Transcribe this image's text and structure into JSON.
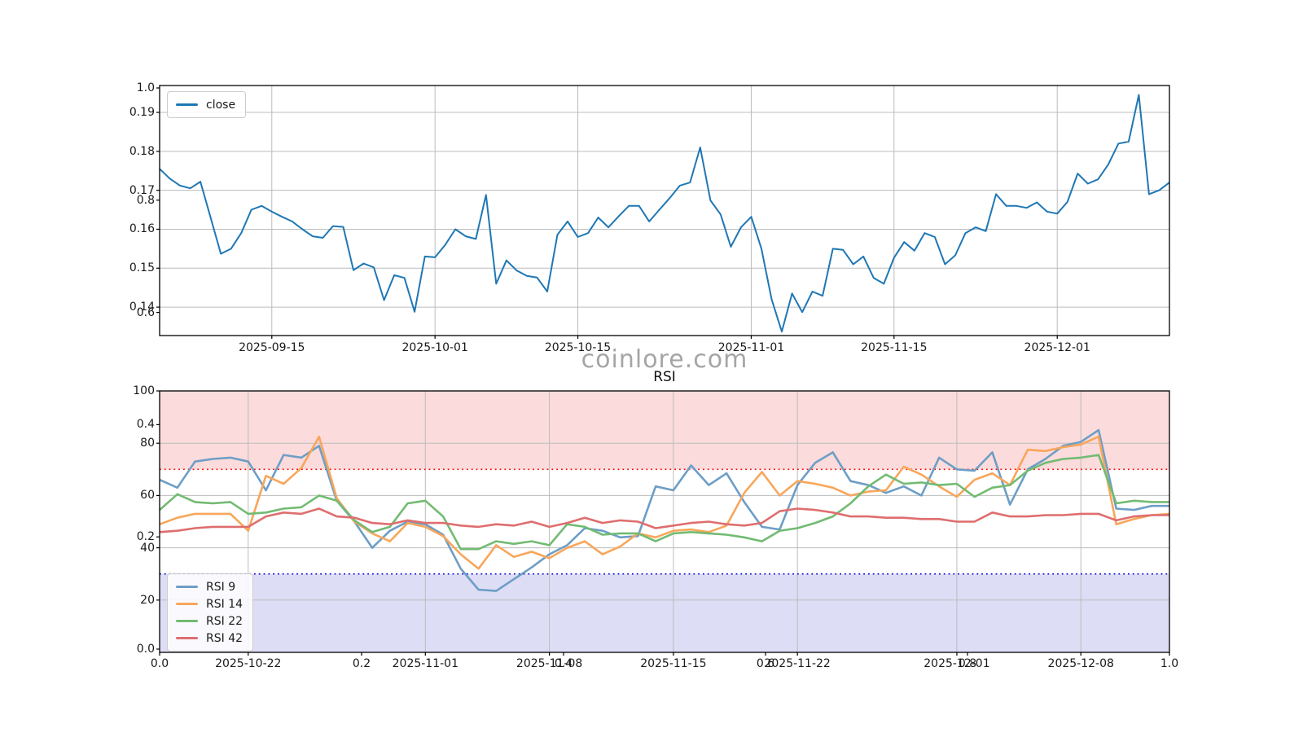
{
  "watermark": "coinlore.com",
  "phantom_axis": {
    "x_ticks": [
      "0.0",
      "0.2",
      "0.4",
      "0.6",
      "0.8",
      "1.0"
    ],
    "y_ticks": [
      "1.0",
      "0.8",
      "0.6",
      "0.4",
      "0.2",
      "0.0"
    ]
  },
  "colors": {
    "close_line": "#1F77B4",
    "rsi9_line": "#6D9EC6",
    "rsi14_line": "#F8A65B",
    "rsi22_line": "#72BB72",
    "rsi42_line": "#DF6E6E",
    "overbought_band": "#FBDBDB",
    "oversold_band": "#DDDDF6",
    "overbought_line": "#FF0000",
    "oversold_line": "#0000CC",
    "grid": "#BCBCBC",
    "spine": "#000000",
    "watermark_text": "#8F8F8F"
  },
  "chart_data": [
    {
      "type": "line",
      "title": "",
      "x_start": "2025-09-04",
      "x_end": "2025-12-12",
      "x_freq": "daily",
      "ylim": [
        0.1327,
        0.1969
      ],
      "yticks": [
        "0.19",
        "0.18",
        "0.17",
        "0.16",
        "0.15",
        "0.14"
      ],
      "xticks": [
        "2025-09-15",
        "2025-10-01",
        "2025-10-15",
        "2025-11-01",
        "2025-11-15",
        "2025-12-01"
      ],
      "grid": true,
      "legend_position": "upper left",
      "series": [
        {
          "name": "close",
          "color": "#1F77B4",
          "values": [
            0.1755,
            0.173,
            0.1712,
            0.1705,
            0.1722,
            0.163,
            0.1537,
            0.155,
            0.159,
            0.165,
            0.166,
            0.1645,
            0.1632,
            0.162,
            0.16,
            0.1582,
            0.1578,
            0.1608,
            0.1606,
            0.1495,
            0.1512,
            0.1502,
            0.1418,
            0.1482,
            0.1475,
            0.1388,
            0.153,
            0.1528,
            0.156,
            0.16,
            0.1582,
            0.1575,
            0.1688,
            0.146,
            0.152,
            0.1494,
            0.148,
            0.1476,
            0.144,
            0.1586,
            0.162,
            0.158,
            0.159,
            0.163,
            0.1605,
            0.1633,
            0.166,
            0.166,
            0.162,
            0.165,
            0.168,
            0.1712,
            0.172,
            0.181,
            0.1674,
            0.1638,
            0.1555,
            0.1605,
            0.1632,
            0.155,
            0.142,
            0.1337,
            0.1435,
            0.1387,
            0.144,
            0.1429,
            0.155,
            0.1547,
            0.151,
            0.153,
            0.1475,
            0.146,
            0.1527,
            0.1567,
            0.1545,
            0.159,
            0.158,
            0.151,
            0.1533,
            0.159,
            0.1605,
            0.1595,
            0.169,
            0.166,
            0.166,
            0.1655,
            0.1669,
            0.1645,
            0.164,
            0.167,
            0.1743,
            0.1717,
            0.1728,
            0.1766,
            0.182,
            0.1825,
            0.1945,
            0.169,
            0.17,
            0.172
          ]
        }
      ]
    },
    {
      "type": "line",
      "title": "RSI",
      "x_start": "2025-10-17",
      "x_end": "2025-12-13",
      "x_freq": "daily",
      "ylim": [
        0,
        100
      ],
      "yticks": [
        "100",
        "80",
        "60",
        "40",
        "20"
      ],
      "xticks": [
        "2025-10-22",
        "2025-11-01",
        "2025-11-08",
        "2025-11-15",
        "2025-11-22",
        "2025-12-01",
        "2025-12-08"
      ],
      "grid": true,
      "legend_position": "lower left",
      "overbought": {
        "level": 70,
        "band": [
          70,
          100
        ],
        "band_color": "#FBDBDB",
        "line_color": "#FF0000"
      },
      "oversold": {
        "level": 30,
        "band": [
          0,
          30
        ],
        "band_color": "#DDDDF6",
        "line_color": "#0000CC"
      },
      "series": [
        {
          "name": "RSI 9",
          "color": "#6D9EC6",
          "values": [
            66,
            63,
            73,
            74,
            74.5,
            73,
            62,
            75.5,
            74.5,
            79,
            58,
            50,
            40,
            46.5,
            50,
            49,
            45,
            32,
            24,
            23.5,
            28,
            32.5,
            37.5,
            41,
            47.5,
            46.5,
            44,
            44.5,
            63.5,
            62,
            71.5,
            64,
            68.5,
            57.5,
            48,
            47,
            64,
            72.5,
            76.5,
            65.5,
            64,
            61,
            63.5,
            60,
            74.5,
            70,
            69.5,
            76.5,
            56.5,
            70,
            74,
            79,
            80.5,
            85,
            55,
            54.5,
            56,
            56
          ]
        },
        {
          "name": "RSI 14",
          "color": "#F8A65B",
          "values": [
            49,
            51.5,
            53,
            53,
            53,
            46.5,
            67.5,
            64.5,
            70.5,
            82.5,
            59,
            50,
            45.5,
            42.5,
            49.5,
            48,
            44.5,
            37.5,
            32,
            41,
            36.5,
            38.5,
            36,
            40,
            42.5,
            37.5,
            40.5,
            45.5,
            44,
            46.5,
            47,
            46,
            48.5,
            61,
            69,
            60,
            65.5,
            64.5,
            63,
            60,
            61.5,
            62,
            71,
            68,
            63.5,
            59.5,
            66,
            68.5,
            64,
            77.5,
            77,
            78.5,
            79.5,
            82.5,
            49,
            51,
            52.5,
            53
          ]
        },
        {
          "name": "RSI 22",
          "color": "#72BB72",
          "values": [
            54.5,
            60.5,
            57.5,
            57,
            57.5,
            53,
            53.5,
            55,
            55.5,
            60,
            58,
            50.5,
            46,
            48,
            57,
            58,
            52,
            39.5,
            39.5,
            42.5,
            41.5,
            42.5,
            41,
            49,
            48,
            45,
            45.5,
            45.5,
            42.5,
            45.5,
            46,
            45.5,
            45,
            44,
            42.5,
            46.5,
            47.5,
            49.5,
            52,
            57,
            63.5,
            68,
            64.5,
            65,
            64,
            64.5,
            59.5,
            63,
            64,
            69.5,
            72.5,
            74,
            74.5,
            75.5,
            57,
            58,
            57.5,
            57.5
          ]
        },
        {
          "name": "RSI 42",
          "color": "#DF6E6E",
          "values": [
            46,
            46.5,
            47.5,
            48,
            48,
            48,
            52,
            53.5,
            53,
            55,
            52,
            51.5,
            49.5,
            49,
            50.5,
            49.5,
            49.5,
            48.5,
            48,
            49,
            48.5,
            50,
            48,
            49.5,
            51.5,
            49.5,
            50.5,
            50,
            47.5,
            48.5,
            49.5,
            50,
            49,
            48.5,
            49.5,
            54,
            55,
            54.5,
            53.5,
            52,
            52,
            51.5,
            51.5,
            51,
            51,
            50,
            50,
            53.5,
            52,
            52,
            52.5,
            52.5,
            53,
            53,
            50.5,
            52,
            52.5,
            52.5
          ]
        }
      ]
    }
  ]
}
